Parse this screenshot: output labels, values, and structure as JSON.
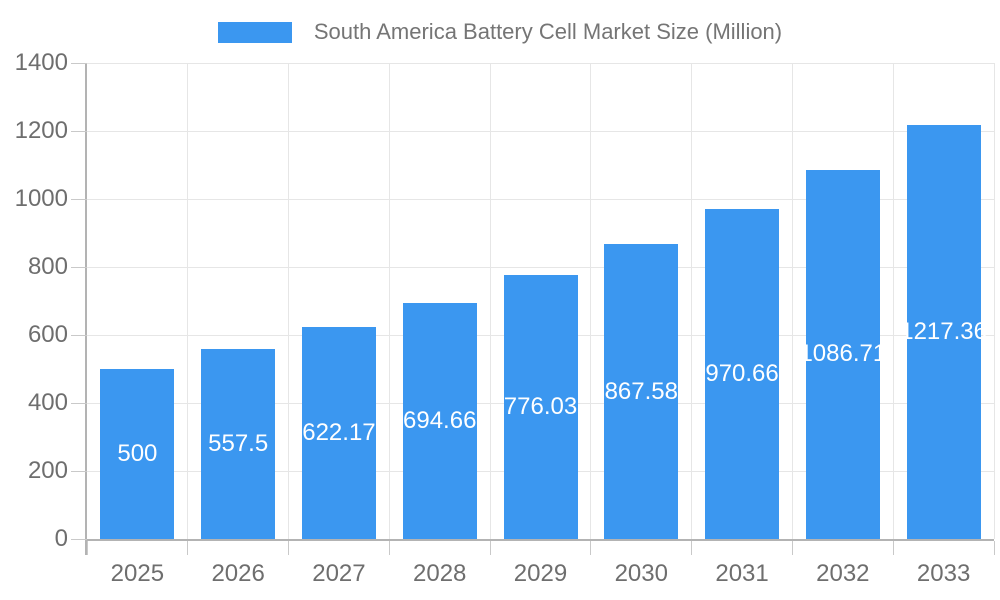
{
  "legend": {
    "label": "South America Battery Cell Market Size (Million)",
    "swatch_color": "#3b97f0"
  },
  "chart_data": {
    "type": "bar",
    "title": "South America Battery Cell Market Size (Million)",
    "categories": [
      "2025",
      "2026",
      "2027",
      "2028",
      "2029",
      "2030",
      "2031",
      "2032",
      "2033"
    ],
    "values": [
      500,
      557.5,
      622.17,
      694.66,
      776.03,
      867.58,
      970.66,
      1086.71,
      1217.36
    ],
    "value_labels": [
      "500",
      "557.5",
      "622.17",
      "694.66",
      "776.03",
      "867.58",
      "970.66",
      "1086.71",
      "1217.36"
    ],
    "xlabel": "",
    "ylabel": "",
    "ylim": [
      0,
      1400
    ],
    "yticks": [
      0,
      200,
      400,
      600,
      800,
      1000,
      1200,
      1400
    ],
    "grid": true,
    "legend_position": "top",
    "bar_color": "#3b97f0",
    "value_label_color": "#ffffff",
    "axis_label_color": "#6e6e6e",
    "gridline_color": "#e6e6e6",
    "axis_line_color": "#b3b3b3"
  }
}
